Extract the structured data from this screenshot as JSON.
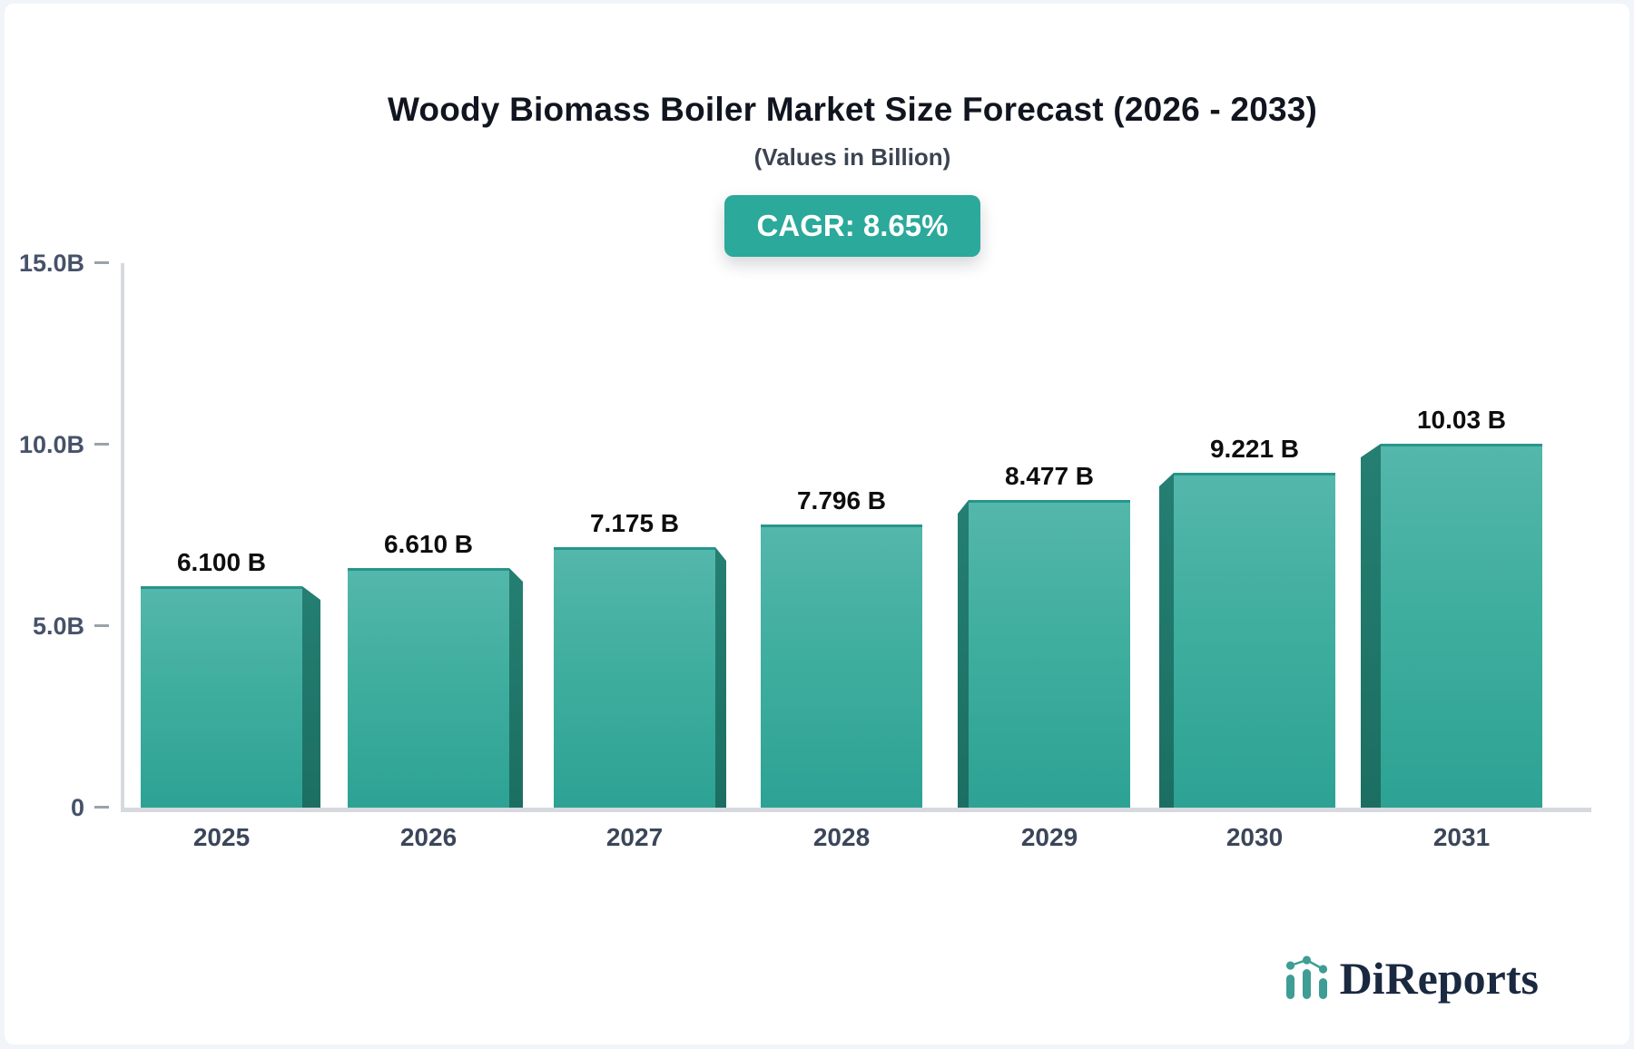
{
  "chart_data": {
    "type": "bar",
    "title": "Woody Biomass Boiler Market Size Forecast (2026 - 2033)",
    "subtitle": "(Values in Billion)",
    "cagr_annotation": "CAGR: 8.65%",
    "unit": "Billion",
    "categories": [
      "2025",
      "2026",
      "2027",
      "2028",
      "2029",
      "2030",
      "2031"
    ],
    "values": [
      6.1,
      6.61,
      7.175,
      7.796,
      8.477,
      9.221,
      10.03
    ],
    "value_labels": [
      "6.100 B",
      "6.610 B",
      "7.175 B",
      "7.796 B",
      "8.477 B",
      "9.221 B",
      "10.03 B"
    ],
    "y_ticks": [
      {
        "value": 15,
        "label": "15.0B"
      },
      {
        "value": 10,
        "label": "10.0B"
      },
      {
        "value": 5,
        "label": "5.0B"
      },
      {
        "value": 0,
        "label": "0"
      }
    ],
    "ylim": [
      0,
      15
    ],
    "xlabel": "",
    "ylabel": "",
    "grid": false,
    "legend": false,
    "bar_color": "#2faa9c",
    "bar_side_color": "#1f7d70",
    "badge_color": "#2ba99b"
  },
  "branding": {
    "logo_text": "DiReports",
    "logo_icon": "mini-bar-line-chart-icon",
    "logo_color": "#3e9d95",
    "logo_text_color": "#1a2940"
  }
}
